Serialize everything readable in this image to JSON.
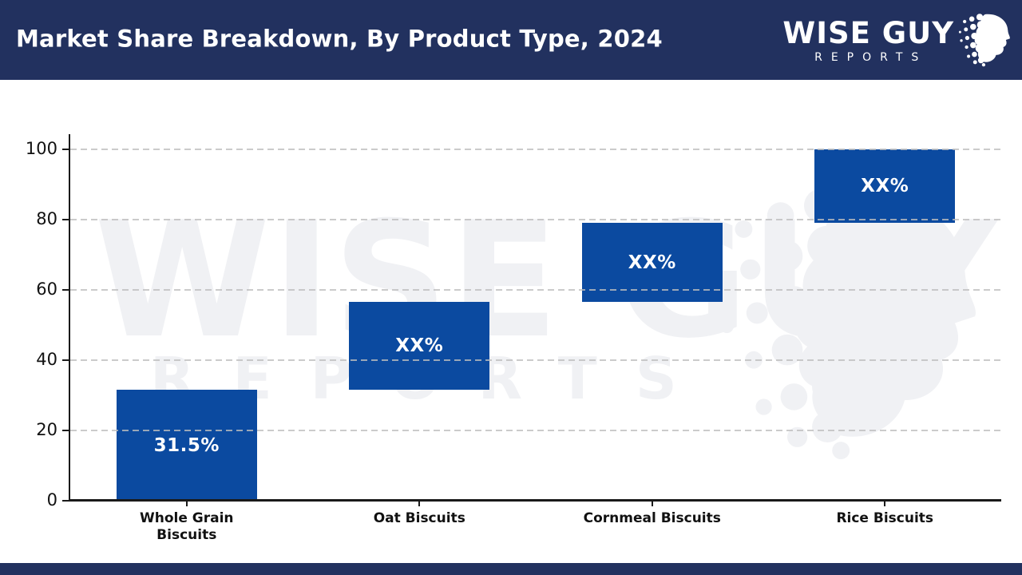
{
  "header": {
    "title": "Market Share Breakdown, By Product Type, 2024",
    "logo": {
      "line1": "WISE GUY",
      "line2": "REPORTS"
    }
  },
  "watermark": {
    "line1": "WISE GUY",
    "line2": "REPORTS"
  },
  "chart_data": {
    "type": "bar",
    "subtype": "waterfall",
    "title": "Market Share Breakdown, By Product Type, 2024",
    "categories": [
      "Whole Grain\nBiscuits",
      "Oat Biscuits",
      "Cornmeal Biscuits",
      "Rice Biscuits"
    ],
    "segments": [
      {
        "category": "Whole Grain Biscuits",
        "start": 0,
        "end": 31.5,
        "label": "31.5%"
      },
      {
        "category": "Oat Biscuits",
        "start": 31.5,
        "end": 56.5,
        "label": "XX%"
      },
      {
        "category": "Cornmeal Biscuits",
        "start": 56.5,
        "end": 79,
        "label": "XX%"
      },
      {
        "category": "Rice Biscuits",
        "start": 79,
        "end": 100,
        "label": "XX%"
      }
    ],
    "ylim": [
      0,
      100
    ],
    "yticks": [
      0,
      20,
      40,
      60,
      80,
      100
    ],
    "xlabel": "",
    "ylabel": "",
    "grid": "horizontal-dashed",
    "legend": "none",
    "bar_color": "#0b4aa0",
    "bar_label_color": "#ffffff"
  },
  "colors": {
    "header_bg": "#22315f",
    "footer_bg": "#22315f",
    "bar": "#0b4aa0",
    "watermark": "#f0f1f4",
    "axis": "#1a1a1a"
  }
}
